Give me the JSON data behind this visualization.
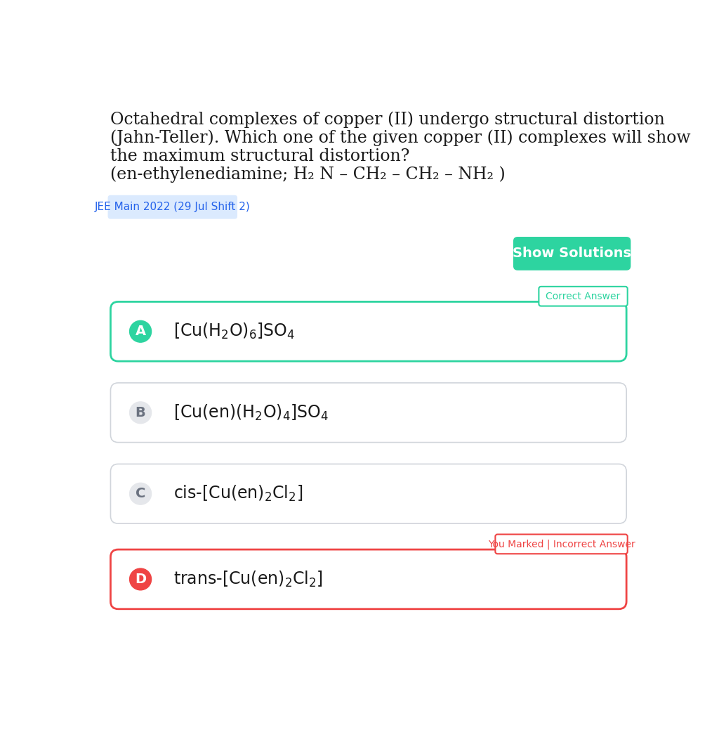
{
  "bg_color": "#ffffff",
  "question_text_lines": [
    "Octahedral complexes of copper (II) undergo structural distortion",
    "(Jahn-Teller). Which one of the given copper (II) complexes will show",
    "the maximum structural distortion?",
    "(en-ethylenediamine; H₂ N – CH₂ – CH₂ – NH₂ )"
  ],
  "tag_text": "JEE Main 2022 (29 Jul Shift 2)",
  "tag_bg": "#dbeafe",
  "tag_text_color": "#2563eb",
  "show_solutions_text": "Show Solutions",
  "show_solutions_bg": "#2dd4a0",
  "show_solutions_text_color": "#ffffff",
  "correct_answer_text": "Correct Answer",
  "correct_answer_border": "#2dd4a0",
  "correct_answer_text_color": "#2dd4a0",
  "you_marked_text": "You Marked | Incorrect Answer",
  "you_marked_border": "#ef4444",
  "you_marked_text_color": "#ef4444",
  "options": [
    {
      "label": "A",
      "formula_mathtext": "$\\left[\\mathrm{Cu(H_2O)_6}\\right] \\mathrm{SO_4}$",
      "label_bg": "#2dd4a0",
      "label_text_color": "#ffffff",
      "is_correct": true,
      "is_wrong": false
    },
    {
      "label": "B",
      "formula_mathtext": "$\\left[\\mathrm{Cu(en)(H_2O)_4}\\right] \\mathrm{SO_4}$",
      "label_bg": "#e5e7eb",
      "label_text_color": "#6b7280",
      "is_correct": false,
      "is_wrong": false
    },
    {
      "label": "C",
      "formula_mathtext": "$\\mathrm{cis\\text{-}} \\left[\\mathrm{Cu(en)_2Cl_2}\\right]$",
      "label_bg": "#e5e7eb",
      "label_text_color": "#6b7280",
      "is_correct": false,
      "is_wrong": false
    },
    {
      "label": "D",
      "formula_mathtext": "$\\mathrm{trans\\text{-}} \\left[\\mathrm{Cu(en)_2Cl_2}\\right]$",
      "label_bg": "#ef4444",
      "label_text_color": "#ffffff",
      "is_correct": false,
      "is_wrong": true
    }
  ],
  "question_font_size": 17,
  "option_font_size": 17,
  "label_font_size": 14,
  "tag_font_size": 11,
  "btn_font_size": 14
}
